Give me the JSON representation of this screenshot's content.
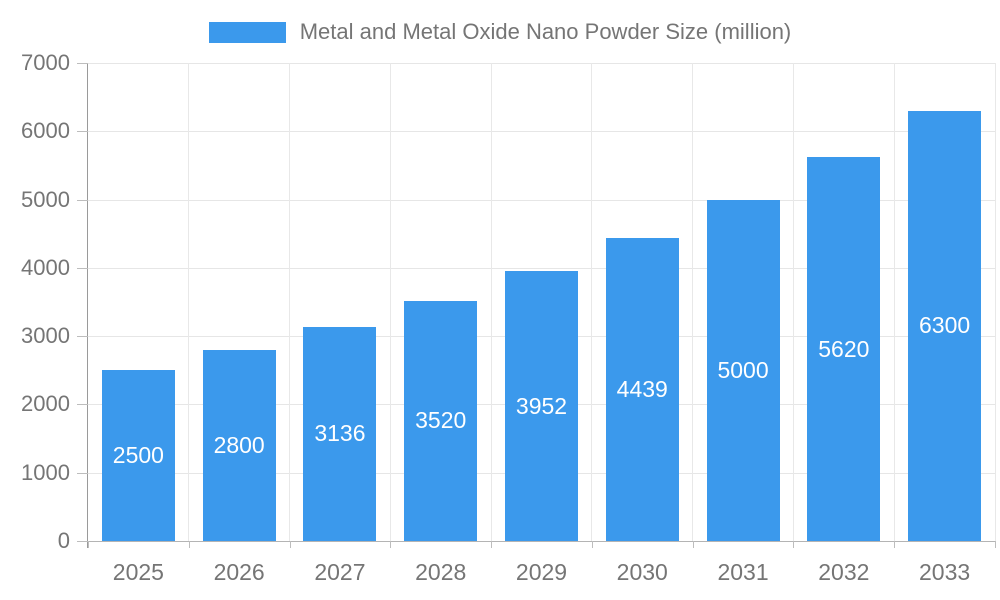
{
  "chart_data": {
    "type": "bar",
    "title": "",
    "legend": {
      "label": "Metal and Metal Oxide Nano Powder Size (million)",
      "position": "top"
    },
    "categories": [
      "2025",
      "2026",
      "2027",
      "2028",
      "2029",
      "2030",
      "2031",
      "2032",
      "2033"
    ],
    "values": [
      2500,
      2800,
      3136,
      3520,
      3952,
      4439,
      5000,
      5620,
      6300
    ],
    "bar_labels": [
      "2500",
      "2800",
      "3136",
      "3520",
      "3952",
      "4439",
      "5000",
      "5620",
      "6300"
    ],
    "xlabel": "",
    "ylabel": "",
    "ylim": [
      0,
      7000
    ],
    "yticks": [
      0,
      1000,
      2000,
      3000,
      4000,
      5000,
      6000,
      7000
    ],
    "grid": true,
    "colors": {
      "bar": "#3b99ec",
      "bar_label": "#ffffff",
      "axis_text": "#757575",
      "gridline": "#e6e6e6",
      "axis_line": "#9a9a9a",
      "background": "#ffffff"
    }
  }
}
